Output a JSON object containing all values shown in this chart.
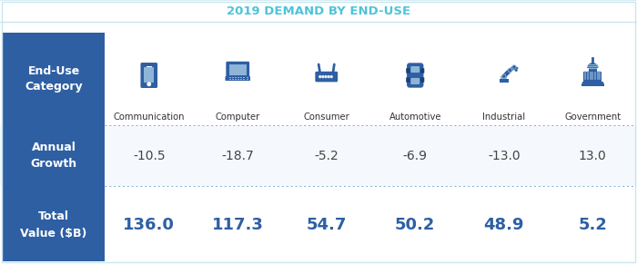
{
  "title": "2019 DEMAND BY END-USE",
  "title_color": "#4FC3D8",
  "categories": [
    "Communication",
    "Computer",
    "Consumer",
    "Automotive",
    "Industrial",
    "Government"
  ],
  "annual_growth": [
    "-10.5",
    "-18.7",
    "-5.2",
    "-6.9",
    "-13.0",
    "13.0"
  ],
  "total_value": [
    "136.0",
    "117.3",
    "54.7",
    "50.2",
    "48.9",
    "5.2"
  ],
  "left_label_bg": "#2E5FA3",
  "left_labels": [
    "End-Use\nCategory",
    "Annual\nGrowth",
    "Total\nValue ($B)"
  ],
  "divider_color": "#7BAFD4",
  "text_color_growth": "#444444",
  "text_color_value": "#2E5FA3",
  "icon_color": "#2E5FA3",
  "icon_light": "#8EB4D8",
  "bg_color": "#ffffff",
  "title_bar_bg": "#ffffff",
  "row2_bg": "#f7f9fc"
}
